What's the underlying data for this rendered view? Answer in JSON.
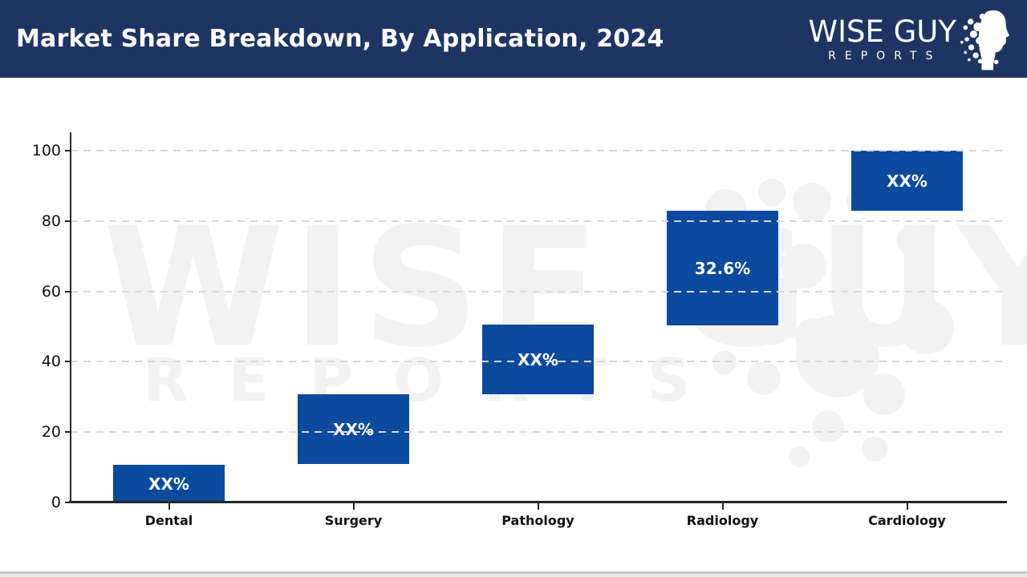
{
  "header": {
    "title": "Market Share Breakdown, By Application, 2024",
    "brand_line1": "WISE GUY",
    "brand_line2": "REPORTS",
    "background_color": "#1e3563"
  },
  "watermark": {
    "line1": "WISE GUY",
    "line2": "REPORTS"
  },
  "chart_data": {
    "type": "bar",
    "subtype": "waterfall",
    "title": "Market Share Breakdown, By Application, 2024",
    "xlabel": "",
    "ylabel": "",
    "categories": [
      "Dental",
      "Surgery",
      "Pathology",
      "Radiology",
      "Cardiology"
    ],
    "segments": [
      {
        "category": "Dental",
        "start": 0,
        "end": 10.7,
        "label": "XX%"
      },
      {
        "category": "Surgery",
        "start": 10.9,
        "end": 30.7,
        "label": "XX%"
      },
      {
        "category": "Pathology",
        "start": 30.7,
        "end": 50.5,
        "label": "XX%"
      },
      {
        "category": "Radiology",
        "start": 50.3,
        "end": 82.9,
        "label": "32.6%"
      },
      {
        "category": "Cardiology",
        "start": 82.9,
        "end": 100,
        "label": "XX%"
      }
    ],
    "yticks": [
      0,
      20,
      40,
      60,
      80,
      100
    ],
    "ylim": [
      0,
      105
    ],
    "grid": "horizontal dashed, drawn above bars",
    "legend": "none",
    "bar_color": "#0c4a9e",
    "bar_label_color": "#ffffff",
    "axis_color": "#262626",
    "gridline_color": "#d8d8d8"
  }
}
